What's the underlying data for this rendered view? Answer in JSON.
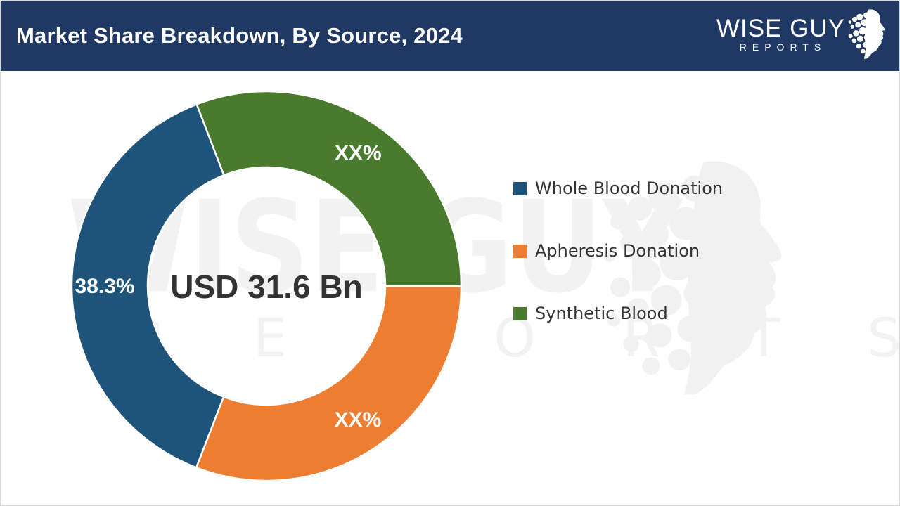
{
  "header": {
    "title": "Market Share Breakdown, By Source, 2024",
    "logo": {
      "line1": "WISE GUY",
      "line2": "REPORTS"
    }
  },
  "watermark": {
    "line1": "WISE GUY",
    "line2": "R E P O R T S"
  },
  "colors": {
    "header_bg": "#1F3864",
    "blue": "#1F547A",
    "orange": "#ED7D31",
    "green": "#4A7A2E",
    "text_dark": "#333333",
    "watermark": "#F2F2F2",
    "frame_border": "#D9D9D9"
  },
  "chart_data": {
    "type": "pie",
    "subtype": "donut",
    "title": "Market Share Breakdown, By Source, 2024",
    "center_label": "USD 31.6 Bn",
    "legend_position": "right",
    "inner_radius_ratio": 0.61,
    "start_angle_deg": 339,
    "direction": "counterclockwise",
    "categories": [
      "Whole Blood Donation",
      "Apheresis Donation",
      "Synthetic Blood"
    ],
    "series": [
      {
        "name": "Whole Blood Donation",
        "value": 38.3,
        "slice_label": "38.3%",
        "color": "#1F547A"
      },
      {
        "name": "Apheresis Donation",
        "value": 30.85,
        "slice_label": "XX%",
        "color": "#ED7D31"
      },
      {
        "name": "Synthetic Blood",
        "value": 30.85,
        "slice_label": "XX%",
        "color": "#4A7A2E"
      }
    ]
  }
}
